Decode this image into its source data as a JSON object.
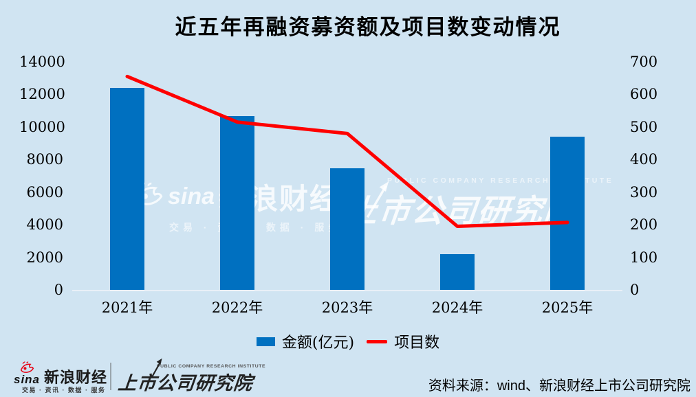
{
  "title": "近五年再融资募资额及项目数变动情况",
  "chart_data": {
    "type": "bar",
    "title": "近五年再融资募资额及项目数变动情况",
    "categories": [
      "2021年",
      "2022年",
      "2023年",
      "2024年",
      "2025年"
    ],
    "series": [
      {
        "name": "金额(亿元)",
        "type": "bar",
        "axis": "left",
        "color": "#0070c0",
        "values": [
          12400,
          10650,
          7450,
          2200,
          9400
        ]
      },
      {
        "name": "项目数",
        "type": "line",
        "axis": "right",
        "color": "#ff0000",
        "values": [
          655,
          515,
          480,
          195,
          207
        ]
      }
    ],
    "left_axis": {
      "min": 0,
      "max": 14000,
      "step": 2000,
      "ticks": [
        "14000",
        "12000",
        "10000",
        "8000",
        "6000",
        "4000",
        "2000",
        "0"
      ]
    },
    "right_axis": {
      "min": 0,
      "max": 700,
      "step": 100,
      "ticks": [
        "700",
        "600",
        "500",
        "400",
        "300",
        "200",
        "100",
        "0"
      ]
    },
    "grid": false,
    "legend_position": "bottom"
  },
  "legend": {
    "items": [
      {
        "label": "金额(亿元)",
        "swatch": "bar",
        "color": "#0070c0"
      },
      {
        "label": "项目数",
        "swatch": "line",
        "color": "#ff0000"
      }
    ]
  },
  "watermark": {
    "left": {
      "brand": "sina",
      "cjk": "新浪财经",
      "tagline": "交易 · 资讯 · 数据 · 服务"
    },
    "right": {
      "en": "PUBLIC COMPANY RESEARCH INSTITUTE",
      "cjk": "上市公司研究院"
    }
  },
  "footer": {
    "sina_brand": "sina",
    "sina_cjk": "新浪财经",
    "sina_tagline": "交易 · 资讯 · 数据 · 服务",
    "institute_en": "PUBLIC COMPANY RESEARCH INSTITUTE",
    "institute_cjk": "上市公司研究院",
    "source": "资料来源：wind、新浪财经上市公司研究院"
  },
  "colors": {
    "background": "#d0e4f2",
    "bar": "#0070c0",
    "line": "#ff0000",
    "text": "#000000",
    "logo_dark": "#222222",
    "baseline": "#e9f0f7"
  }
}
